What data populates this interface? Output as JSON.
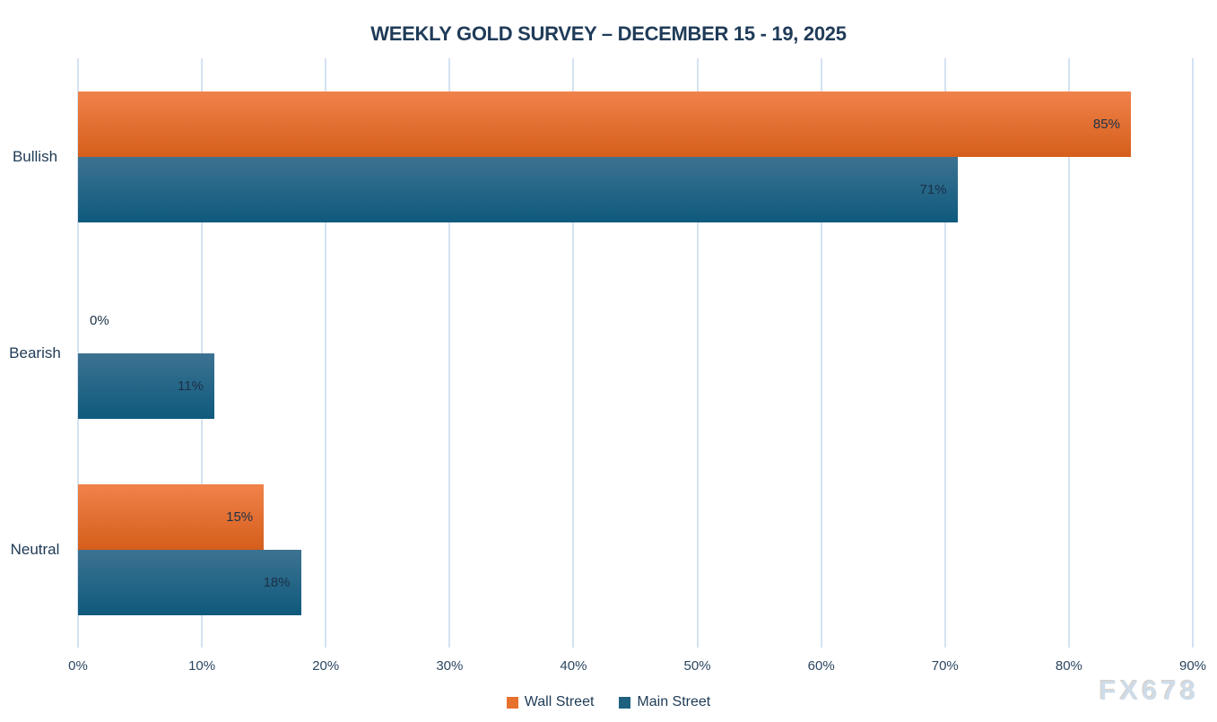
{
  "page": {
    "watermark": "FX678"
  },
  "colors": {
    "title_text": "#1F3B58",
    "axis_text": "#2B4660",
    "category_text": "#1E3A55",
    "data_label_text": "#1C3048",
    "gridline": "#D4E2F2",
    "background": "#FFFFFF",
    "watermark_text": "#CEDCE9"
  },
  "chart_data": {
    "type": "bar",
    "orientation": "horizontal",
    "title": "WEEKLY GOLD SURVEY – DECEMBER 15 - 19, 2025",
    "categories": [
      "Bullish",
      "Bearish",
      "Neutral"
    ],
    "series": [
      {
        "name": "Wall Street",
        "values": [
          85,
          0,
          15
        ],
        "color": "#E8702D",
        "color_top": "#F0824A",
        "color_bottom": "#D55E1B"
      },
      {
        "name": "Main Street",
        "values": [
          71,
          11,
          18
        ],
        "color": "#20607F",
        "color_top": "#3D7291",
        "color_bottom": "#0E5A7D"
      }
    ],
    "value_suffix": "%",
    "xlim": [
      0,
      90
    ],
    "x_ticks": [
      "0%",
      "10%",
      "20%",
      "30%",
      "40%",
      "50%",
      "60%",
      "70%",
      "80%",
      "90%"
    ],
    "grid": true,
    "legend_position": "bottom"
  }
}
